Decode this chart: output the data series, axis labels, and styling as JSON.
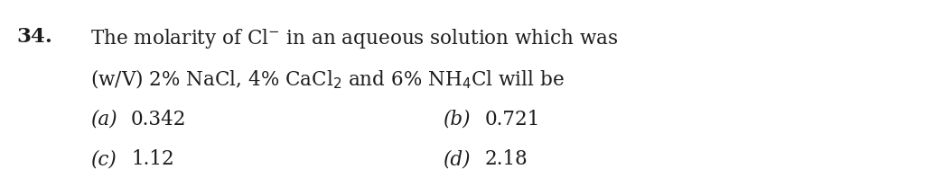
{
  "question_number": "34.",
  "line1_pre": "The molarity of Cl",
  "line1_sup": "⁻",
  "line1_post": " in an aqueous solution which was",
  "line2": "(w/V) 2% NaCl, 4% CaCl$_{2}$ and 6% NH$_{4}$Cl will be",
  "line2_plain": "(w/V) 2% NaCl, 4% CaCl₂ and 6% NH₄Cl will be",
  "opt_a_label": "(a)",
  "opt_a_val": "0.342",
  "opt_b_label": "(b)",
  "opt_b_val": "0.721",
  "opt_c_label": "(c)",
  "opt_c_val": "1.12",
  "opt_d_label": "(d)",
  "opt_d_val": "2.18",
  "bg_color": "#ffffff",
  "text_color": "#1c1c1c",
  "font_size": 15.5,
  "font_size_qnum": 16.5
}
